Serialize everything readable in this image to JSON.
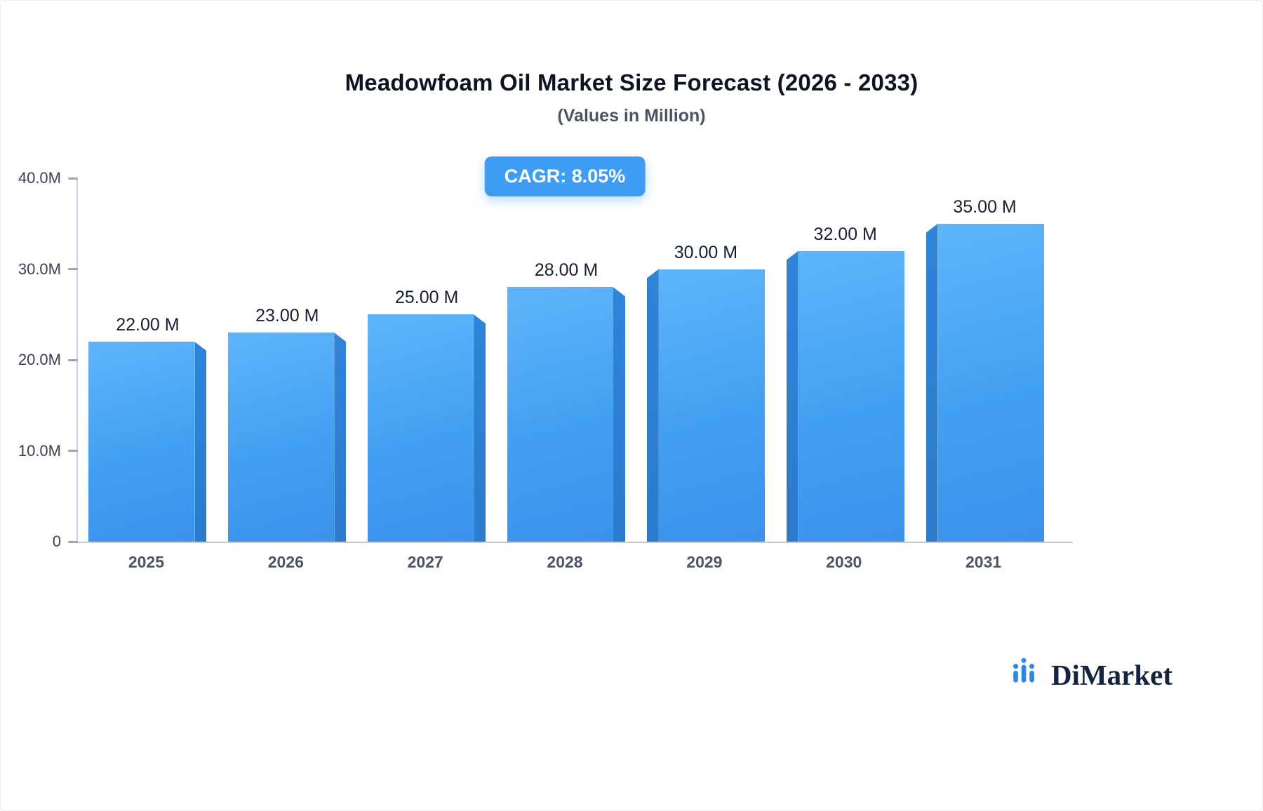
{
  "title": "Meadowfoam Oil Market Size Forecast (2026 - 2033)",
  "subtitle": "(Values in Million)",
  "cagr_label": "CAGR: 8.05%",
  "brand": {
    "name": "DiMarket"
  },
  "colors": {
    "accent": "#3E9DF3",
    "bar_main": "#42A0F2",
    "bar_side": "#2C7BCC",
    "axis": "#C8CDD4",
    "logo_icon": "#2E86E5",
    "logo_text": "#16233f"
  },
  "chart_data": {
    "type": "bar",
    "categories": [
      "2025",
      "2026",
      "2027",
      "2028",
      "2029",
      "2030",
      "2031"
    ],
    "values": [
      22,
      23,
      25,
      28,
      30,
      32,
      35
    ],
    "value_labels": [
      "22.00 M",
      "23.00 M",
      "25.00 M",
      "28.00 M",
      "30.00 M",
      "32.00 M",
      "35.00 M"
    ],
    "title": "Meadowfoam Oil Market Size Forecast (2026 - 2033)",
    "xlabel": "",
    "ylabel": "",
    "ylim": [
      0,
      40
    ],
    "yticks": [
      0,
      10,
      20,
      30,
      40
    ],
    "ytick_labels": [
      "0",
      "10.0M",
      "20.0M",
      "30.0M",
      "40.0M"
    ],
    "grid": false,
    "legend": false
  }
}
